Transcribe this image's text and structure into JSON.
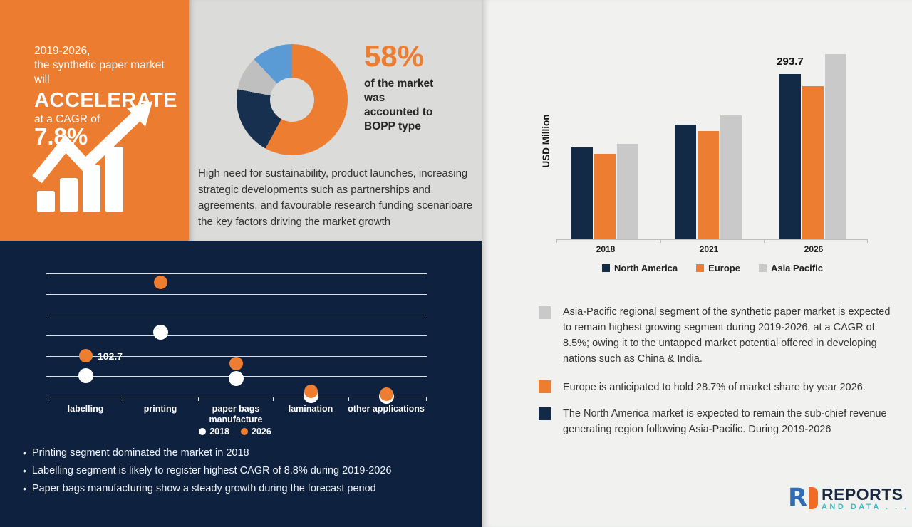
{
  "promo": {
    "line1": "2019-2026,",
    "line2": "the synthetic paper market",
    "line3": "will",
    "accelerate": "ACCELERATE",
    "cagr_label": "at a CAGR of",
    "cagr_value": "7.8%"
  },
  "bopp": {
    "pct": "58%",
    "caption": "of the market was accounted to BOPP type",
    "paragraph": "High need for sustainability, product launches, increasing strategic developments such as partnerships and agreements, and favourable research funding scenarioare the key factors driving the market growth"
  },
  "chart_data": [
    {
      "id": "bopp-donut",
      "type": "pie",
      "annotation": "58% of the market was accounted to BOPP type",
      "segments": [
        {
          "label": "BOPP",
          "value": 58,
          "color": "#ED7D31"
        },
        {
          "label": "segment-navy",
          "value": 20,
          "color": "#17304F"
        },
        {
          "label": "segment-gray",
          "value": 10,
          "color": "#BFBFBF"
        },
        {
          "label": "segment-blue",
          "value": 12,
          "color": "#5B9BD5"
        }
      ]
    },
    {
      "id": "regional-market-bars",
      "type": "bar",
      "categories": [
        "2018",
        "2021",
        "2026"
      ],
      "series": [
        {
          "name": "North America",
          "color": "#132A47",
          "values": [
            163,
            204,
            293.7
          ]
        },
        {
          "name": "Europe",
          "color": "#ED7D31",
          "values": [
            152,
            192,
            272
          ]
        },
        {
          "name": "Asia Pacific",
          "color": "#C9C9C9",
          "values": [
            170,
            220,
            329
          ]
        }
      ],
      "ylabel": "USD Million",
      "ylim": [
        0,
        345
      ],
      "legend_position": "bottom",
      "labeled_point": {
        "series": "North America",
        "category": "2026",
        "label": "293.7"
      }
    },
    {
      "id": "application-dot-plot",
      "type": "scatter",
      "categories": [
        "labelling",
        "printing",
        "paper bags manufacture",
        "lamination",
        "other applications"
      ],
      "series": [
        {
          "name": "2018",
          "color": "#FFFFFF",
          "values": [
            53,
            160,
            46,
            2,
            1
          ]
        },
        {
          "name": "2026",
          "color": "#ED7D31",
          "values": [
            102.7,
            285,
            83,
            14,
            7
          ]
        }
      ],
      "gridlines": true,
      "labeled_point": {
        "series": "2026",
        "category": "labelling",
        "label": "102.7"
      }
    }
  ],
  "bullets": [
    "Printing segment dominated the market in 2018",
    "Labelling  segment is likely to register highest CAGR of 8.8% during 2019-2026",
    "Paper bags manufacturing show a steady growth during the forecast period"
  ],
  "insights": [
    {
      "color": "#C9C9C9",
      "text": "Asia-Pacific regional segment of the synthetic paper market is expected to remain highest growing segment during 2019-2026, at a CAGR of 8.5%; owing it to the untapped market potential offered in developing nations such as China & India."
    },
    {
      "color": "#ED7D31",
      "text": "Europe is anticipated to hold 28.7% of market share by year 2026."
    },
    {
      "color": "#132A47",
      "text": "The North America market  is expected to remain the sub-chief revenue generating region following Asia-Pacific. During 2019-2026"
    }
  ],
  "logo": {
    "mark": "R",
    "reports": "REPORTS",
    "and_data": "AND DATA . . ."
  }
}
